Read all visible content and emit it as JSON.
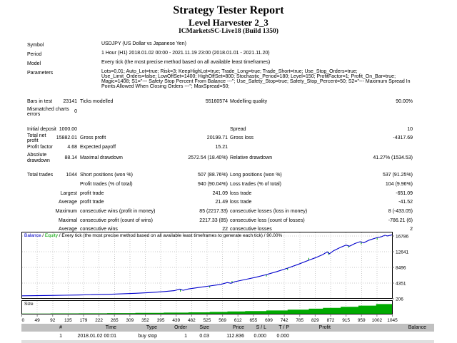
{
  "header": {
    "title": "Strategy Tester Report",
    "ea_name": "Level Harvester 2_3",
    "server": "ICMarketsSC-Live18 (Build 1350)"
  },
  "info": {
    "symbol_label": "Symbol",
    "symbol": "USDJPY (US Dollar vs Japanese Yen)",
    "period_label": "Period",
    "period": "1 Hour (H1) 2018.01.02 00:00 - 2021.11.19 23:00 (2018.01.01 - 2021.11.20)",
    "model_label": "Model",
    "model": "Every tick (the most precise method based on all available least timeframes)",
    "parameters_label": "Parameters",
    "parameters": "Lots=0.01; Auto_Lot=true; Risk=3; KeepHighLot=true; Trade_Long=true; Trade_Short=true; Use_Stop_Orders=true; Use_Limit_Orders=false; LowOffSet=1400; HighOffSet=800; Stochastic_Period=180; Level=150; ProfitFactor=1; Profit_On_Bar=true; Magic=1408; S1=\"--- Safety Stop Percent From Balance ---\"; Use_Safety_Stop=true; Safety_Stop_Percent=50; S2=\"--- Maximum Spread In Points Allowed When Closing Orders ---\"; MaxSpread=50;"
  },
  "stats": {
    "rows": [
      {
        "c1": "Bars in test",
        "c2": "23141",
        "c3": "Ticks modelled",
        "c4": "55160574",
        "c5": "Modelling quality",
        "c6": "90.00%"
      },
      {
        "c1": "Mismatched charts errors",
        "c2": "0",
        "tall": true
      },
      {
        "spacer": true
      },
      {
        "c1": "Initial deposit",
        "c2": "1000.00",
        "c5": "Spread",
        "c6": "10"
      },
      {
        "c1": "Total net profit",
        "c2": "15882.01",
        "c3": "Gross profit",
        "c4": "20199.71",
        "c5": "Gross loss",
        "c6": "-4317.69"
      },
      {
        "c1": "Profit factor",
        "c2": "4.68",
        "c3": "Expected payoff",
        "c4": "15.21"
      },
      {
        "c1": "Absolute drawdown",
        "c2": "88.14",
        "c3": "Maximal drawdown",
        "c4": "2572.54 (18.40%)",
        "c5": "Relative drawdown",
        "c6": "41.27% (1534.53)",
        "tall": true
      },
      {
        "spacer": true
      },
      {
        "c1": "Total trades",
        "c2": "1044",
        "c3": "Short positions (won %)",
        "c4": "507 (88.76%)",
        "c5": "Long positions (won %)",
        "c6": "537 (91.25%)"
      },
      {
        "c3": "Profit trades (% of total)",
        "c4": "940 (90.04%)",
        "c5": "Loss trades (% of total)",
        "c6": "104 (9.96%)"
      },
      {
        "c2": "Largest",
        "c3": "profit trade",
        "c4": "241.09",
        "c5": "loss trade",
        "c6": "-651.09"
      },
      {
        "c2": "Average",
        "c3": "profit trade",
        "c4": "21.49",
        "c5": "loss trade",
        "c6": "-41.52"
      },
      {
        "c2": "Maximum",
        "c3": "consecutive wins (profit in money)",
        "c4": "85 (2217.33)",
        "c5": "consecutive losses (loss in money)",
        "c6": "8 (-433.05)"
      },
      {
        "c2": "Maximal",
        "c3": "consecutive profit (count of wins)",
        "c4": "2217.33 (85)",
        "c5": "consecutive loss (count of losses)",
        "c6": "-786.21 (6)"
      },
      {
        "c2": "Average",
        "c3": "consecutive wins",
        "c4": "22",
        "c5": "consecutive losses",
        "c6": "2"
      }
    ]
  },
  "chart_data": {
    "type": "line",
    "caption_balance": "Balance",
    "caption_sep1": " / ",
    "caption_equity": "Equity",
    "caption_rest": " / Every tick (the most precise method based on all available least timeframes to generate each tick) / 90.00%",
    "size_label": "Size",
    "legend_position": "top-left",
    "grid": true,
    "x_range": [
      0,
      1045
    ],
    "y_range": [
      206,
      17917
    ],
    "x_ticks": [
      0,
      49,
      92,
      135,
      179,
      222,
      265,
      309,
      352,
      395,
      439,
      482,
      525,
      569,
      612,
      655,
      699,
      742,
      785,
      829,
      872,
      915,
      959,
      1002,
      1045
    ],
    "y_ticks": [
      16786,
      12641,
      8496,
      4351,
      206
    ],
    "colors": {
      "balance": "#0000CC",
      "equity": "#00AA00",
      "size": "#00AA00",
      "grid": "#C8C8C8",
      "border": "#000000"
    },
    "size_max": 0.62,
    "series": [
      {
        "name": "Balance",
        "points": [
          [
            0,
            1000
          ],
          [
            40,
            1040
          ],
          [
            80,
            1090
          ],
          [
            120,
            1140
          ],
          [
            160,
            1210
          ],
          [
            200,
            1290
          ],
          [
            240,
            1380
          ],
          [
            280,
            1500
          ],
          [
            320,
            1650
          ],
          [
            360,
            1850
          ],
          [
            400,
            2100
          ],
          [
            430,
            2350
          ],
          [
            445,
            2750
          ],
          [
            455,
            2450
          ],
          [
            470,
            2800
          ],
          [
            500,
            3200
          ],
          [
            530,
            3600
          ],
          [
            560,
            4000
          ],
          [
            580,
            4500
          ],
          [
            590,
            4300
          ],
          [
            600,
            4700
          ],
          [
            630,
            5300
          ],
          [
            660,
            5900
          ],
          [
            690,
            6600
          ],
          [
            720,
            7400
          ],
          [
            750,
            8300
          ],
          [
            780,
            9300
          ],
          [
            810,
            10400
          ],
          [
            830,
            11100
          ],
          [
            850,
            11900
          ],
          [
            862,
            12600
          ],
          [
            868,
            12100
          ],
          [
            880,
            12900
          ],
          [
            900,
            13800
          ],
          [
            915,
            14400
          ],
          [
            925,
            14100
          ],
          [
            940,
            14800
          ],
          [
            955,
            15300
          ],
          [
            965,
            15000
          ],
          [
            980,
            15700
          ],
          [
            1000,
            16300
          ],
          [
            1015,
            16600
          ],
          [
            1025,
            17000
          ],
          [
            1032,
            16800
          ],
          [
            1045,
            17100
          ]
        ]
      },
      {
        "name": "Equity",
        "ticks": [
          [
            447,
            2750,
            2100
          ],
          [
            530,
            3600,
            3150
          ],
          [
            593,
            4400,
            4900
          ],
          [
            690,
            6600,
            6100
          ],
          [
            750,
            8300,
            7800
          ],
          [
            810,
            10400,
            11000
          ],
          [
            866,
            12600,
            11800
          ],
          [
            922,
            14300,
            13700
          ],
          [
            958,
            15200,
            14600
          ],
          [
            1003,
            16300,
            15800
          ]
        ]
      },
      {
        "name": "Size",
        "points": [
          [
            0,
            0.03
          ],
          [
            80,
            0.035
          ],
          [
            160,
            0.04
          ],
          [
            240,
            0.05
          ],
          [
            320,
            0.06
          ],
          [
            400,
            0.075
          ],
          [
            470,
            0.09
          ],
          [
            530,
            0.11
          ],
          [
            580,
            0.13
          ],
          [
            630,
            0.15
          ],
          [
            690,
            0.18
          ],
          [
            750,
            0.22
          ],
          [
            810,
            0.27
          ],
          [
            850,
            0.31
          ],
          [
            900,
            0.36
          ],
          [
            950,
            0.42
          ],
          [
            1000,
            0.5
          ],
          [
            1045,
            0.58
          ]
        ]
      }
    ]
  },
  "trades": {
    "headers": [
      "#",
      "Time",
      "Type",
      "Order",
      "Size",
      "Price",
      "S / L",
      "T / P",
      "Profit",
      "Balance"
    ],
    "rows": [
      [
        "1",
        "2018.01.02 00:01",
        "buy stop",
        "1",
        "0.03",
        "112.836",
        "0.000",
        "0.000",
        "",
        ""
      ]
    ]
  }
}
